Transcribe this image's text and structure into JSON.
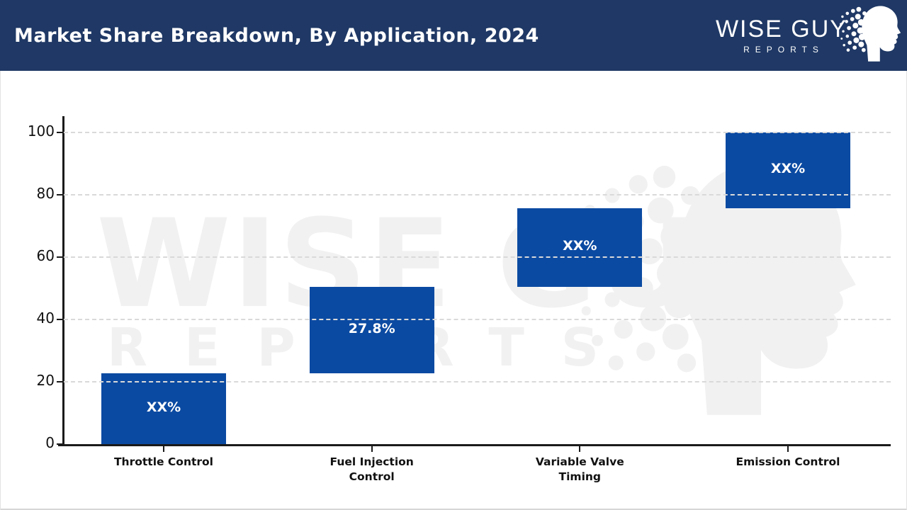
{
  "header": {
    "title": "Market Share Breakdown, By Application, 2024",
    "logo": {
      "wordmark": "WISE GUY",
      "tagline": "REPORTS",
      "icon": "dotted-head-profile-icon"
    }
  },
  "watermark": {
    "wordmark": "WISE GUY",
    "tagline": "REPORTS",
    "icon": "dotted-head-profile-watermark"
  },
  "colors": {
    "header_bg": "#1F3865",
    "bar": "#0B4AA2",
    "bar_label_text": "#FFFFFF",
    "axis": "#1A1A1A",
    "gridline": "#D9D9D9",
    "tick_text": "#111111",
    "watermark": "#F1F1F1"
  },
  "chart_data": {
    "type": "bar",
    "subtype": "waterfall",
    "title": "Market Share Breakdown, By Application, 2024",
    "categories": [
      "Throttle Control",
      "Fuel Injection Control",
      "Variable Valve Timing",
      "Emission Control"
    ],
    "segments": [
      {
        "category": "Throttle Control",
        "start": 0,
        "end": 22.7,
        "value_label": "XX%"
      },
      {
        "category": "Fuel Injection Control",
        "start": 22.7,
        "end": 50.5,
        "value_label": "27.8%",
        "value": 27.8
      },
      {
        "category": "Variable Valve Timing",
        "start": 50.5,
        "end": 75.7,
        "value_label": "XX%"
      },
      {
        "category": "Emission Control",
        "start": 75.7,
        "end": 100,
        "value_label": "XX%"
      }
    ],
    "ylim": [
      0,
      100
    ],
    "yticks": [
      0,
      20,
      40,
      60,
      80,
      100
    ],
    "xlabel": "",
    "ylabel": "",
    "grid": {
      "horizontal": true,
      "style": "dashed"
    },
    "legend": null,
    "bar_color": "#0B4AA2"
  }
}
